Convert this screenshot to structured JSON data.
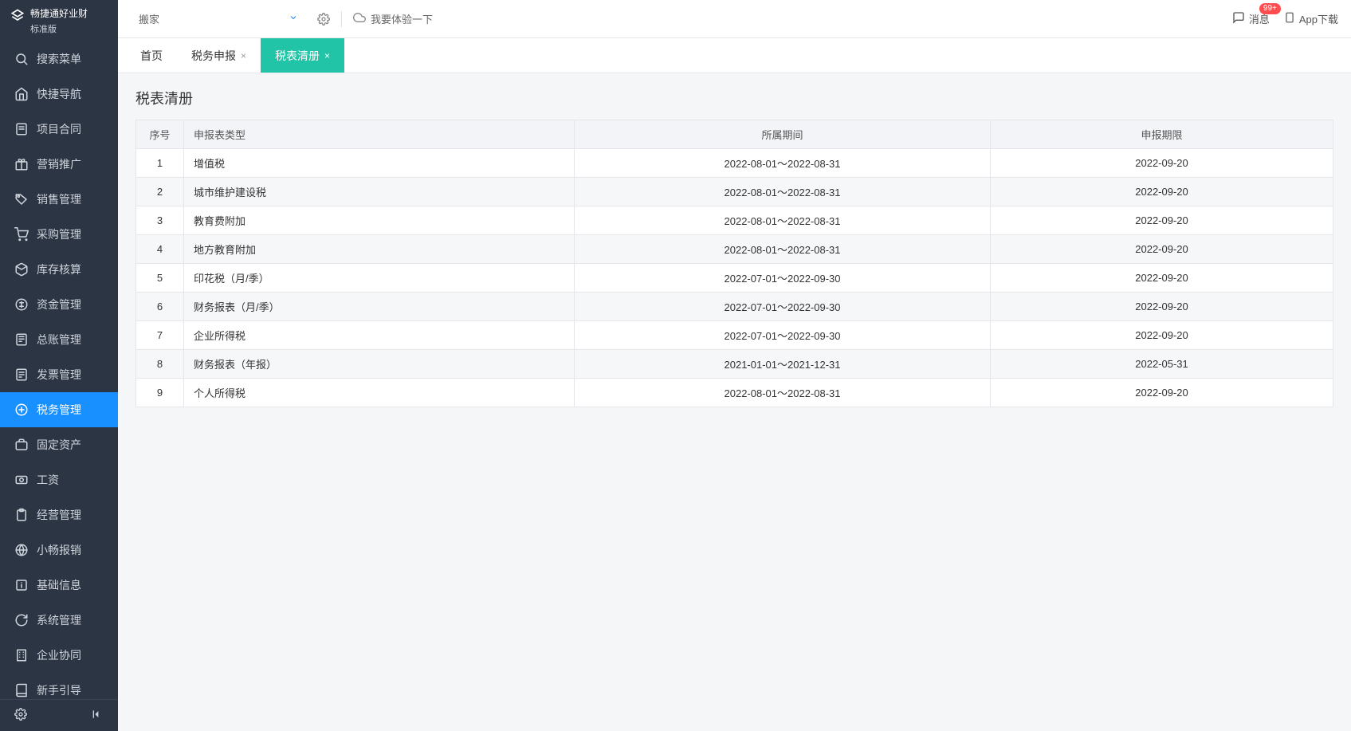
{
  "brand": {
    "title": "畅捷通好业财",
    "subtitle": "标准版"
  },
  "sidebar": {
    "items": [
      {
        "key": "search-menu",
        "label": "搜索菜单",
        "icon": "search"
      },
      {
        "key": "quick-nav",
        "label": "快捷导航",
        "icon": "home"
      },
      {
        "key": "project",
        "label": "项目合同",
        "icon": "doc"
      },
      {
        "key": "marketing",
        "label": "营销推广",
        "icon": "gift"
      },
      {
        "key": "sales",
        "label": "销售管理",
        "icon": "tag"
      },
      {
        "key": "purchase",
        "label": "采购管理",
        "icon": "cart"
      },
      {
        "key": "inventory",
        "label": "库存核算",
        "icon": "box"
      },
      {
        "key": "funds",
        "label": "资金管理",
        "icon": "coin"
      },
      {
        "key": "ledger",
        "label": "总账管理",
        "icon": "ledger"
      },
      {
        "key": "invoice",
        "label": "发票管理",
        "icon": "invoice"
      },
      {
        "key": "tax",
        "label": "税务管理",
        "icon": "tax",
        "active": true
      },
      {
        "key": "assets",
        "label": "固定资产",
        "icon": "asset"
      },
      {
        "key": "wages",
        "label": "工资",
        "icon": "wage"
      },
      {
        "key": "biz",
        "label": "经营管理",
        "icon": "clipboard"
      },
      {
        "key": "report",
        "label": "小畅报销",
        "icon": "globe"
      },
      {
        "key": "base",
        "label": "基础信息",
        "icon": "info"
      },
      {
        "key": "system",
        "label": "系统管理",
        "icon": "loop"
      },
      {
        "key": "coop",
        "label": "企业协同",
        "icon": "building"
      },
      {
        "key": "guide",
        "label": "新手引导",
        "icon": "book"
      }
    ]
  },
  "topbar": {
    "dropdown_label": "搬家",
    "cloud_text": "我要体验一下",
    "message_label": "消息",
    "app_label": "App下载",
    "badge": "99+"
  },
  "tabs": [
    {
      "label": "首页",
      "closable": false
    },
    {
      "label": "税务申报",
      "closable": true
    },
    {
      "label": "税表清册",
      "closable": true,
      "active": true
    }
  ],
  "page": {
    "title": "税表清册"
  },
  "table": {
    "columns": [
      "序号",
      "申报表类型",
      "所属期间",
      "申报期限"
    ],
    "rows": [
      [
        "1",
        "增值税",
        "2022-08-01～2022-08-31",
        "2022-09-20"
      ],
      [
        "2",
        "城市维护建设税",
        "2022-08-01～2022-08-31",
        "2022-09-20"
      ],
      [
        "3",
        "教育费附加",
        "2022-08-01～2022-08-31",
        "2022-09-20"
      ],
      [
        "4",
        "地方教育附加",
        "2022-08-01～2022-08-31",
        "2022-09-20"
      ],
      [
        "5",
        "印花税（月/季）",
        "2022-07-01～2022-09-30",
        "2022-09-20"
      ],
      [
        "6",
        "财务报表（月/季）",
        "2022-07-01～2022-09-30",
        "2022-09-20"
      ],
      [
        "7",
        "企业所得税",
        "2022-07-01～2022-09-30",
        "2022-09-20"
      ],
      [
        "8",
        "财务报表（年报）",
        "2021-01-01～2021-12-31",
        "2022-05-31"
      ],
      [
        "9",
        "个人所得税",
        "2022-08-01～2022-08-31",
        "2022-09-20"
      ]
    ]
  },
  "colors": {
    "sidebar_bg": "#2c3544",
    "sidebar_active": "#1890ff",
    "tab_active": "#21c4a6",
    "table_header": "#f2f4f7",
    "row_alt": "#f6f7f9",
    "border": "#e4e6ea",
    "badge": "#ff4d4f"
  }
}
